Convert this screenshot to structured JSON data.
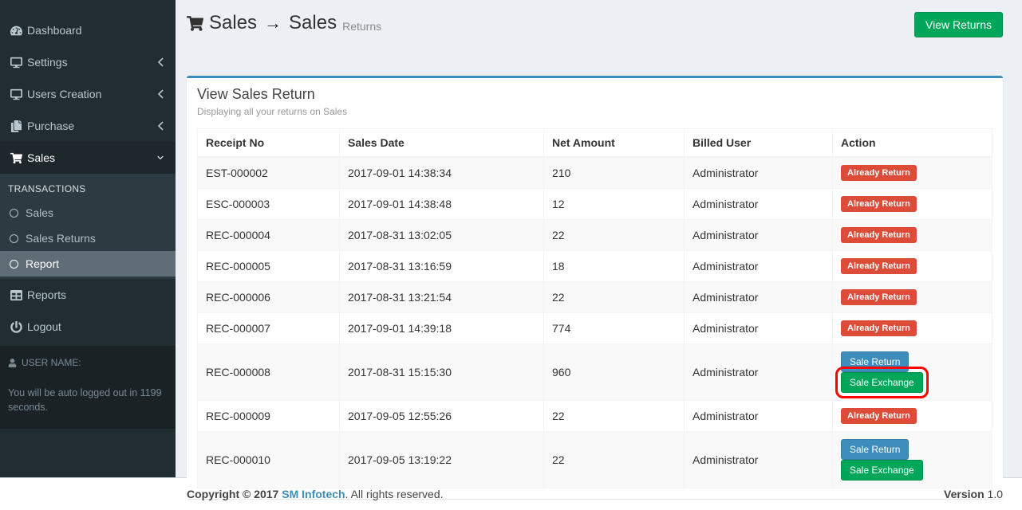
{
  "sidebar": {
    "items": [
      {
        "label": "Dashboard",
        "icon": "dashboard-icon"
      },
      {
        "label": "Settings",
        "icon": "desktop-icon",
        "chevron": "left"
      },
      {
        "label": "Users Creation",
        "icon": "desktop-icon",
        "chevron": "left"
      },
      {
        "label": "Purchase",
        "icon": "copy-icon",
        "chevron": "left"
      },
      {
        "label": "Sales",
        "icon": "cart-icon",
        "chevron": "down",
        "active": true
      }
    ],
    "transactions_header": "TRANSACTIONS",
    "submenu": [
      {
        "label": "Sales"
      },
      {
        "label": "Sales Returns"
      },
      {
        "label": "Report",
        "highlighted": true
      }
    ],
    "items_lower": [
      {
        "label": "Reports",
        "icon": "table-icon"
      },
      {
        "label": "Logout",
        "icon": "power-icon"
      }
    ],
    "user_label": "USER NAME:",
    "auto_logout_notice": "You will be auto logged out in 1199 seconds."
  },
  "header": {
    "breadcrumb_root": "Sales",
    "page_title": "Sales",
    "page_subtitle": "Returns",
    "view_returns_button": "View Returns"
  },
  "icons": {
    "arrow_right": "→"
  },
  "box": {
    "title": "View Sales Return",
    "subtitle": "Displaying all your returns on Sales"
  },
  "table": {
    "columns": [
      "Receipt No",
      "Sales Date",
      "Net Amount",
      "Billed User",
      "Action"
    ],
    "rows": [
      {
        "receipt": "EST-000002",
        "date": "2017-09-01 14:38:34",
        "amount": "210",
        "user": "Administrator",
        "actions": [
          {
            "label": "Already Return",
            "style": "badge-red",
            "name": "already-return-badge"
          }
        ]
      },
      {
        "receipt": "ESC-000003",
        "date": "2017-09-01 14:38:48",
        "amount": "12",
        "user": "Administrator",
        "actions": [
          {
            "label": "Already Return",
            "style": "badge-red",
            "name": "already-return-badge"
          }
        ]
      },
      {
        "receipt": "REC-000004",
        "date": "2017-08-31 13:02:05",
        "amount": "22",
        "user": "Administrator",
        "actions": [
          {
            "label": "Already Return",
            "style": "badge-red",
            "name": "already-return-badge"
          }
        ]
      },
      {
        "receipt": "REC-000005",
        "date": "2017-08-31 13:16:59",
        "amount": "18",
        "user": "Administrator",
        "actions": [
          {
            "label": "Already Return",
            "style": "badge-red",
            "name": "already-return-badge"
          }
        ]
      },
      {
        "receipt": "REC-000006",
        "date": "2017-08-31 13:21:54",
        "amount": "22",
        "user": "Administrator",
        "actions": [
          {
            "label": "Already Return",
            "style": "badge-red",
            "name": "already-return-badge"
          }
        ]
      },
      {
        "receipt": "REC-000007",
        "date": "2017-09-01 14:39:18",
        "amount": "774",
        "user": "Administrator",
        "actions": [
          {
            "label": "Already Return",
            "style": "badge-red",
            "name": "already-return-badge"
          }
        ]
      },
      {
        "receipt": "REC-000008",
        "date": "2017-08-31 15:15:30",
        "amount": "960",
        "user": "Administrator",
        "actions": [
          {
            "label": "Sale Return",
            "style": "btn-blue",
            "name": "sale-return-button"
          },
          {
            "label": "Sale Exchange",
            "style": "btn-green",
            "name": "sale-exchange-button",
            "highlighted": true
          }
        ]
      },
      {
        "receipt": "REC-000009",
        "date": "2017-09-05 12:55:26",
        "amount": "22",
        "user": "Administrator",
        "actions": [
          {
            "label": "Already Return",
            "style": "badge-red",
            "name": "already-return-badge"
          }
        ]
      },
      {
        "receipt": "REC-000010",
        "date": "2017-09-05 13:19:22",
        "amount": "22",
        "user": "Administrator",
        "actions": [
          {
            "label": "Sale Return",
            "style": "btn-blue",
            "name": "sale-return-button"
          },
          {
            "label": "Sale Exchange",
            "style": "btn-green",
            "name": "sale-exchange-button"
          }
        ]
      }
    ]
  },
  "annotation": {
    "highlight_color": "#ff0000",
    "highlight_target": "Sale Exchange button on row REC-000008"
  },
  "footer": {
    "copyright_prefix": "Copyright © 2017",
    "company": "SM Infotech",
    "copyright_suffix": ". All rights reserved.",
    "version_label": "Version",
    "version_value": "1.0"
  },
  "colors": {
    "accent_blue": "#3c8dbc",
    "success_green": "#00a65a",
    "danger_red": "#dd4b39",
    "sidebar_dark": "#222d32",
    "content_bg": "#ecf0f5",
    "annotation_red": "#ff0000"
  }
}
